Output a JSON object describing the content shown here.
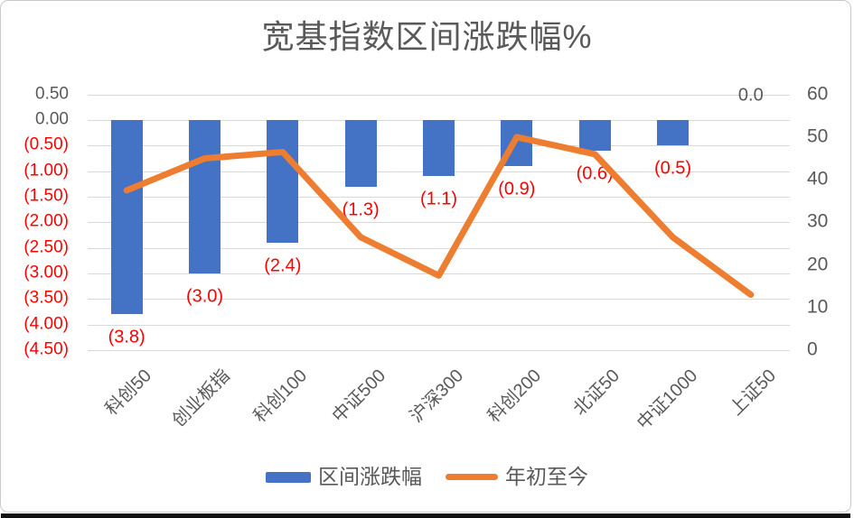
{
  "chart_data": {
    "type": "combo-bar-line",
    "title": "宽基指数区间涨跌幅%",
    "categories": [
      "科创50",
      "创业板指",
      "科创100",
      "中证500",
      "沪深300",
      "科创200",
      "北证50",
      "中证1000",
      "上证50"
    ],
    "series": [
      {
        "name": "区间涨跌幅",
        "type": "bar",
        "axis": "left",
        "values": [
          -3.8,
          -3.0,
          -2.4,
          -1.3,
          -1.1,
          -0.9,
          -0.6,
          -0.5,
          0.0
        ],
        "data_labels": [
          "(3.8)",
          "(3.0)",
          "(2.4)",
          "(1.3)",
          "(1.1)",
          "(0.9)",
          "(0.6)",
          "(0.5)",
          "0.0"
        ]
      },
      {
        "name": "年初至今",
        "type": "line",
        "axis": "right",
        "values": [
          37.5,
          45,
          46.5,
          26.5,
          17.5,
          50,
          46,
          26.5,
          13
        ]
      }
    ],
    "left_axis": {
      "max": 0.5,
      "min": -4.5,
      "step": 0.5,
      "ticks": [
        "0.50",
        "0.00",
        "(0.50)",
        "(1.00)",
        "(1.50)",
        "(2.00)",
        "(2.50)",
        "(3.00)",
        "(3.50)",
        "(4.00)",
        "(4.50)"
      ]
    },
    "right_axis": {
      "max": 60,
      "min": 0,
      "step": 10,
      "ticks": [
        "60",
        "50",
        "40",
        "30",
        "20",
        "10",
        "0"
      ]
    },
    "grid": true,
    "legend_position": "bottom"
  },
  "legend": {
    "items": [
      {
        "label": "区间涨跌幅",
        "swatch": "bar"
      },
      {
        "label": "年初至今",
        "swatch": "line"
      }
    ]
  },
  "colors": {
    "bar": "#4472C4",
    "line": "#ED7D31",
    "negative_label": "#FF0000",
    "axis_text": "#595959",
    "title_text": "#595959",
    "gridline": "#D9D9D9"
  }
}
